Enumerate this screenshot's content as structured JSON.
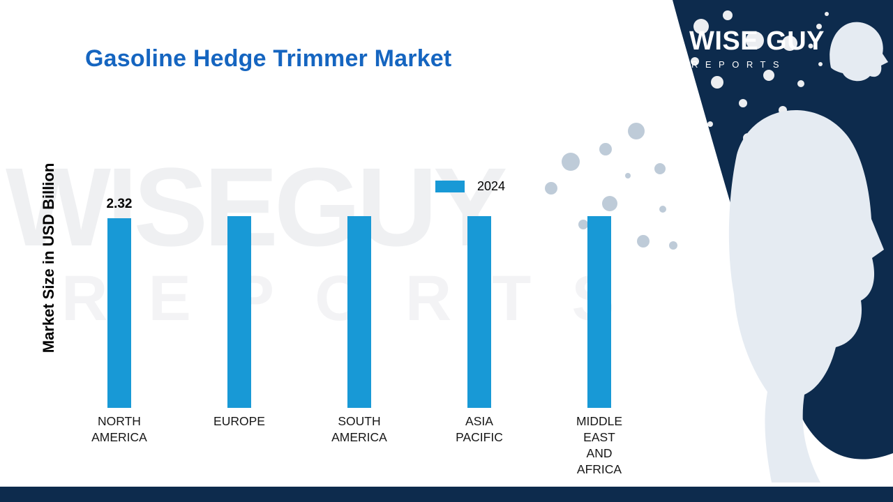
{
  "title": "Gasoline Hedge Trimmer Market",
  "logo": {
    "main": "WISE GUY",
    "sub": "REPORTS"
  },
  "watermark": {
    "line1": "WISEGUY",
    "line2": "REPORTS"
  },
  "chart_data": {
    "type": "bar",
    "title": "Gasoline Hedge Trimmer Market",
    "ylabel": "Market Size in USD Billion",
    "xlabel": "",
    "categories": [
      "NORTH AMERICA",
      "EUROPE",
      "SOUTH AMERICA",
      "ASIA PACIFIC",
      "MIDDLE EAST AND AFRICA"
    ],
    "category_lines": [
      [
        "NORTH",
        "AMERICA"
      ],
      [
        "EUROPE"
      ],
      [
        "SOUTH",
        "AMERICA"
      ],
      [
        "ASIA",
        "PACIFIC"
      ],
      [
        "MIDDLE",
        "EAST",
        "AND",
        "AFRICA"
      ]
    ],
    "series": [
      {
        "name": "2024",
        "color": "#1899d6",
        "values": [
          2.32,
          2.32,
          2.32,
          2.32,
          2.32
        ]
      }
    ],
    "data_labels": [
      "2.32",
      "",
      "",
      "",
      ""
    ],
    "unit": "USD Billion",
    "ylim": [
      0,
      2.5
    ],
    "grid": false,
    "legend_position": "top, above plot right of center"
  },
  "colors": {
    "navy": "#0d2b4d",
    "bar_blue": "#1899d6",
    "title_blue": "#1565c0",
    "face_light": "#e5ebf2",
    "dot_slate": "#a9bacc"
  }
}
